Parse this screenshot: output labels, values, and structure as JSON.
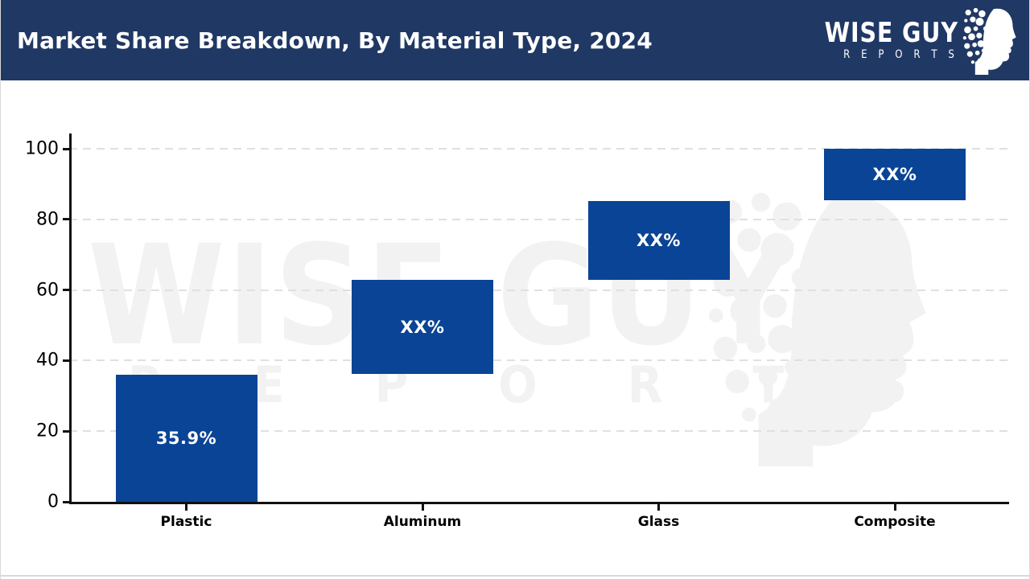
{
  "header": {
    "title": "Market Share Breakdown, By Material Type, 2024",
    "logo": {
      "wordmark": "WISE GUY",
      "subtext": "R E P O R T S"
    }
  },
  "watermark": {
    "wordmark": "WISE GUY",
    "subtext": "R E P O R T S"
  },
  "chart_data": {
    "type": "bar",
    "subtype": "floating-segment (waterfall-style market share breakdown)",
    "title": "Market Share Breakdown, By Material Type, 2024",
    "categories": [
      "Plastic",
      "Aluminum",
      "Glass",
      "Composite"
    ],
    "segments": [
      {
        "category": "Plastic",
        "start": 0,
        "end": 35.9,
        "label": "35.9%"
      },
      {
        "category": "Aluminum",
        "start": 36.2,
        "end": 62.8,
        "label": "XX%"
      },
      {
        "category": "Glass",
        "start": 62.8,
        "end": 85.1,
        "label": "XX%"
      },
      {
        "category": "Composite",
        "start": 85.5,
        "end": 100,
        "label": "XX%"
      }
    ],
    "xlabel": "",
    "ylabel": "",
    "yticks": [
      0,
      20,
      40,
      60,
      80,
      100
    ],
    "ylim": [
      0,
      105
    ],
    "grid": "horizontal-dashed",
    "legend": "none",
    "colors": {
      "bar": "#0a4496",
      "bar_label": "#ffffff",
      "header_bg": "#203864",
      "gridline": "#e0e0e0",
      "axis": "#111111",
      "watermark": "#f2f2f2"
    }
  }
}
